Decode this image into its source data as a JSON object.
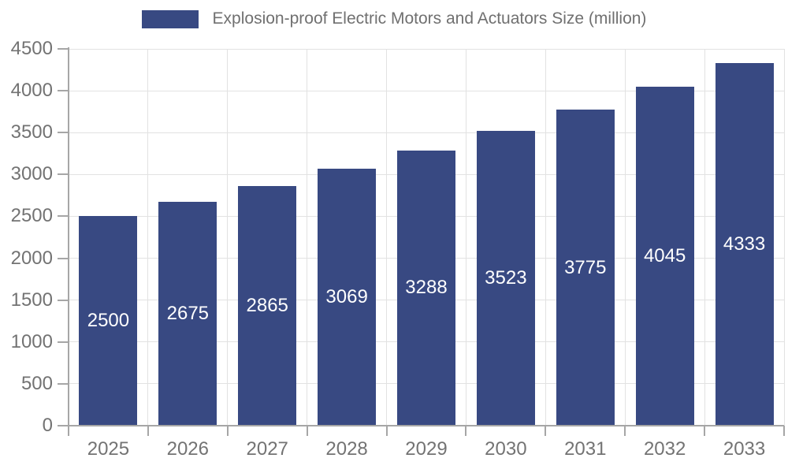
{
  "legend": {
    "label": "Explosion-proof Electric Motors and Actuators Size (million)",
    "swatch_color": "#384982"
  },
  "chart_data": {
    "type": "bar",
    "title": "Explosion-proof Electric Motors and Actuators Size (million)",
    "categories": [
      "2025",
      "2026",
      "2027",
      "2028",
      "2029",
      "2030",
      "2031",
      "2032",
      "2033"
    ],
    "values": [
      2500,
      2675,
      2865,
      3069,
      3288,
      3523,
      3775,
      4045,
      4333
    ],
    "xlabel": "",
    "ylabel": "",
    "ylim": [
      0,
      4500
    ],
    "yticks": [
      0,
      500,
      1000,
      1500,
      2000,
      2500,
      3000,
      3500,
      4000,
      4500
    ],
    "grid": true,
    "legend_position": "top-center",
    "bar_color": "#384982",
    "value_label_color": "#ffffff",
    "axis_text_color": "#737373",
    "gridline_color": "#e2e2e2",
    "axis_line_color": "#a6a6a6"
  }
}
